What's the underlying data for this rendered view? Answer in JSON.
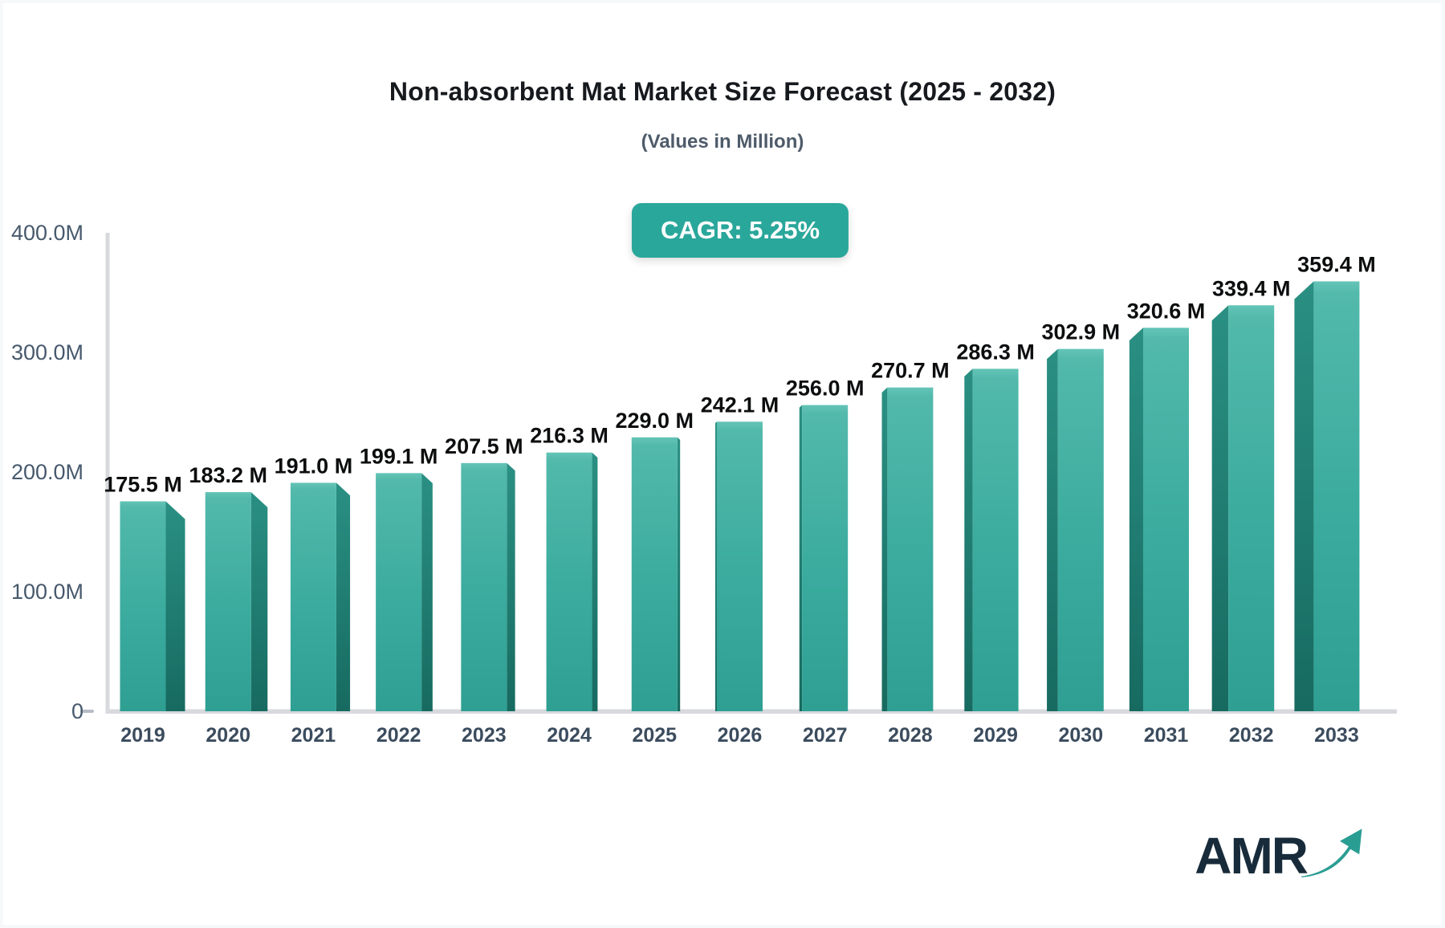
{
  "header": {
    "title": "Non-absorbent Mat Market Size Forecast (2025 - 2032)",
    "subtitle": "(Values in Million)"
  },
  "cagr_badge": {
    "label": "CAGR: 5.25%",
    "bg_color": "#2aa79b"
  },
  "logo": {
    "text": "AMR",
    "arrow_icon_color": "#2a9d93",
    "text_color": "#182b3a"
  },
  "chart_data": {
    "type": "bar",
    "title": "Non-absorbent Mat Market Size Forecast (2025 - 2032)",
    "subtitle": "(Values in Million)",
    "categories": [
      "2019",
      "2020",
      "2021",
      "2022",
      "2023",
      "2024",
      "2025",
      "2026",
      "2027",
      "2028",
      "2029",
      "2030",
      "2031",
      "2032",
      "2033"
    ],
    "values": [
      175.5,
      183.2,
      191.0,
      199.1,
      207.5,
      216.3,
      229.0,
      242.1,
      256.0,
      270.7,
      286.3,
      302.9,
      320.6,
      339.4,
      359.4
    ],
    "data_labels": [
      "175.5 M",
      "183.2 M",
      "191.0 M",
      "199.1 M",
      "207.5 M",
      "216.3 M",
      "229.0 M",
      "242.1 M",
      "256.0 M",
      "270.7 M",
      "286.3 M",
      "302.9 M",
      "320.6 M",
      "339.4 M",
      "359.4 M"
    ],
    "y_axis": {
      "ylim": [
        0,
        400
      ],
      "ticks": [
        {
          "value": 400,
          "label": "400.0M"
        },
        {
          "value": 300,
          "label": "300.0M"
        },
        {
          "value": 200,
          "label": "200.0M"
        },
        {
          "value": 100,
          "label": "100.0M"
        },
        {
          "value": 0,
          "label": "0"
        }
      ]
    },
    "grid": false,
    "legend": false,
    "style_3d": true,
    "colors": {
      "bar_front_top": "#64c4b7",
      "bar_front_mid": "#3aab9e",
      "bar_front_bottom": "#2e9f92",
      "bar_side_top": "#2a9083",
      "bar_side_bottom": "#176a60",
      "axis_line": "#d7d9dd",
      "zero_tick": "#b6bcc4",
      "axis_label": "#47596d",
      "category_label": "#3b4c5e",
      "value_label": "#0c0d0e"
    }
  }
}
